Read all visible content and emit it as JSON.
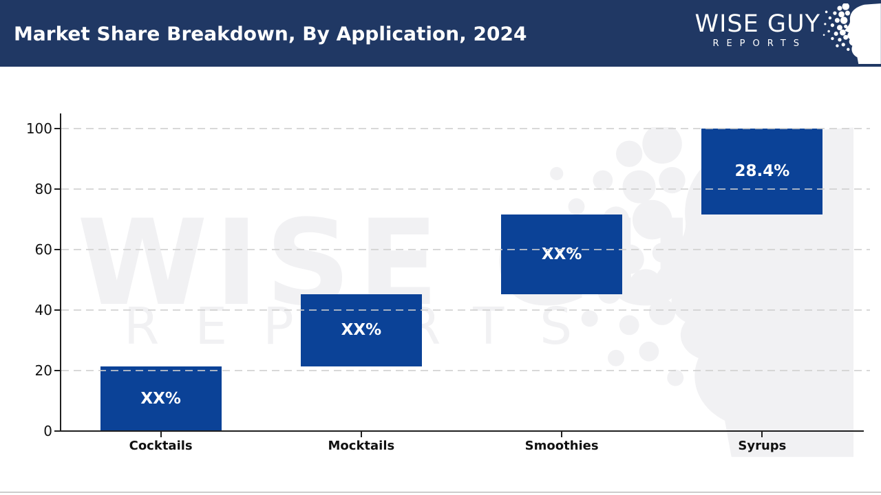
{
  "header": {
    "title": "Market Share Breakdown, By Application, 2024",
    "logo": {
      "line1": "WISE GUY",
      "line2": "REPORTS"
    }
  },
  "watermark": {
    "line1": "WISE GUY",
    "line2": "REPORTS"
  },
  "chart_data": {
    "type": "bar",
    "subtype": "floating-waterfall",
    "title": "Market Share Breakdown, By Application, 2024",
    "categories": [
      "Cocktails",
      "Mocktails",
      "Smoothies",
      "Syrups"
    ],
    "bars": [
      {
        "category": "Cocktails",
        "label": "XX%",
        "start": 0,
        "end": 21.4
      },
      {
        "category": "Mocktails",
        "label": "XX%",
        "start": 21.4,
        "end": 45.2
      },
      {
        "category": "Smoothies",
        "label": "XX%",
        "start": 45.2,
        "end": 71.6
      },
      {
        "category": "Syrups",
        "label": "28.4%",
        "start": 71.6,
        "end": 100
      }
    ],
    "yticks": [
      0,
      20,
      40,
      60,
      80,
      100
    ],
    "ylim": [
      0,
      105
    ],
    "xlabel": "",
    "ylabel": "",
    "grid": "horizontal-dashed",
    "legend": "none",
    "colors": {
      "bar": "#0b4297",
      "bar_label": "#ffffff",
      "header_bg": "#203864",
      "gridline": "#cfcfcf",
      "axis": "#1f1f1f",
      "watermark": "#f1f1f3"
    }
  }
}
